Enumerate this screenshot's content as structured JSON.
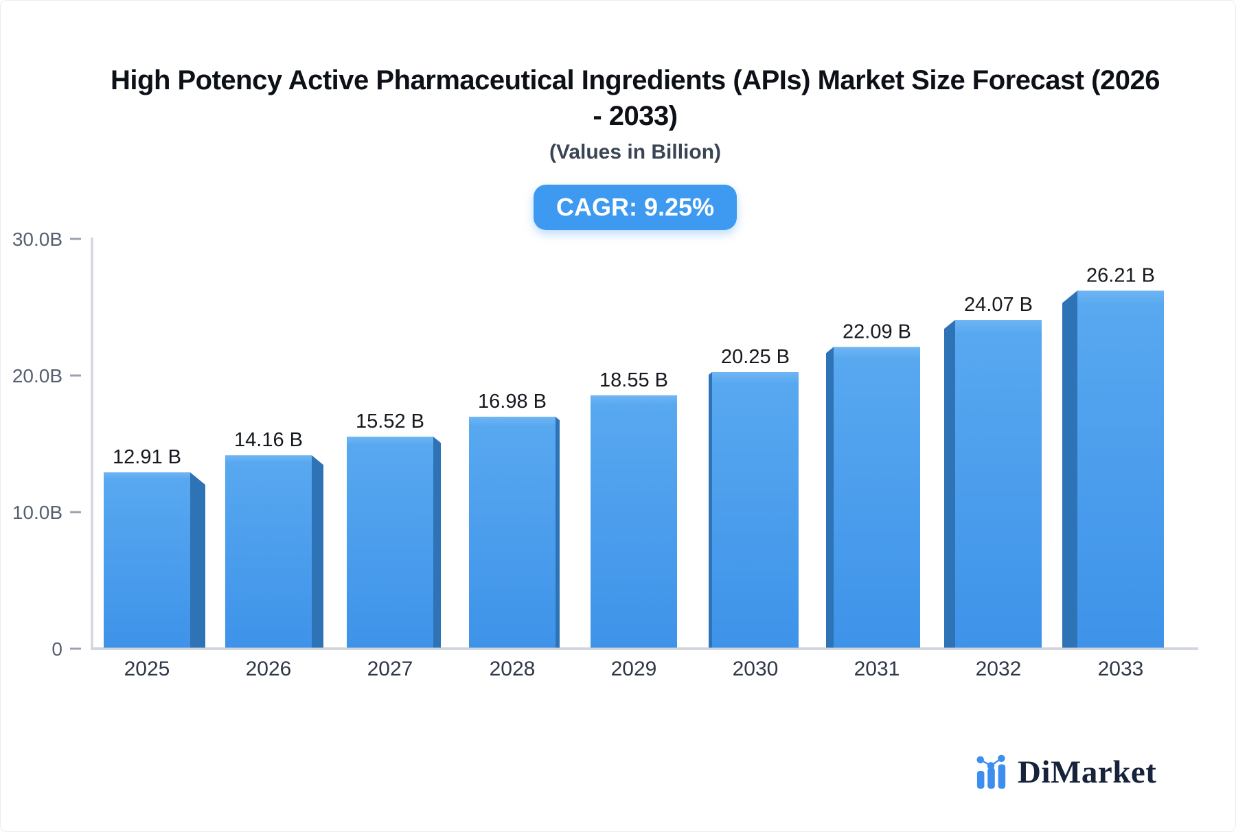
{
  "header": {
    "title_line1": "High Potency Active Pharmaceutical Ingredients (APIs) Market Size Forecast (2026",
    "title_line2": "- 2033)",
    "subtitle": "(Values in Billion)",
    "cagr_badge": "CAGR: 9.25%",
    "badge_color": "#3d9af0"
  },
  "chart_data": {
    "type": "bar",
    "title": "High Potency Active Pharmaceutical Ingredients (APIs) Market Size Forecast (2026 - 2033)",
    "subtitle": "(Values in Billion)",
    "cagr": "9.25%",
    "unit": "Billion",
    "categories": [
      "2025",
      "2026",
      "2027",
      "2028",
      "2029",
      "2030",
      "2031",
      "2032",
      "2033"
    ],
    "values": [
      12.91,
      14.16,
      15.52,
      16.98,
      18.55,
      20.25,
      22.09,
      24.07,
      26.21
    ],
    "value_labels": [
      "12.91 B",
      "14.16 B",
      "15.52 B",
      "16.98 B",
      "18.55 B",
      "20.25 B",
      "22.09 B",
      "24.07 B",
      "26.21 B"
    ],
    "xlabel": "",
    "ylabel": "",
    "ylim": [
      0,
      30
    ],
    "y_ticks": [
      {
        "value": 0,
        "label": "0"
      },
      {
        "value": 10,
        "label": "10.0B"
      },
      {
        "value": 20,
        "label": "20.0B"
      },
      {
        "value": 30,
        "label": "30.0B"
      }
    ],
    "grid": false,
    "legend": false,
    "bar_style": "3d-perspective",
    "colors": {
      "bar_front_top": "#6fb5f3",
      "bar_front_bottom": "#3e93e9",
      "bar_side": "#2e73b6",
      "axis_line": "#d2d6dd",
      "tick_mark": "#9aa2ae",
      "y_label": "#566070",
      "x_label": "#2f3847",
      "value_label": "#15191f"
    }
  },
  "footer": {
    "logo_text": "DiMarket",
    "logo_icon": "mini-bar-line-chart-icon",
    "logo_text_color": "#16233b",
    "logo_icon_color": "#3e8ef0"
  }
}
